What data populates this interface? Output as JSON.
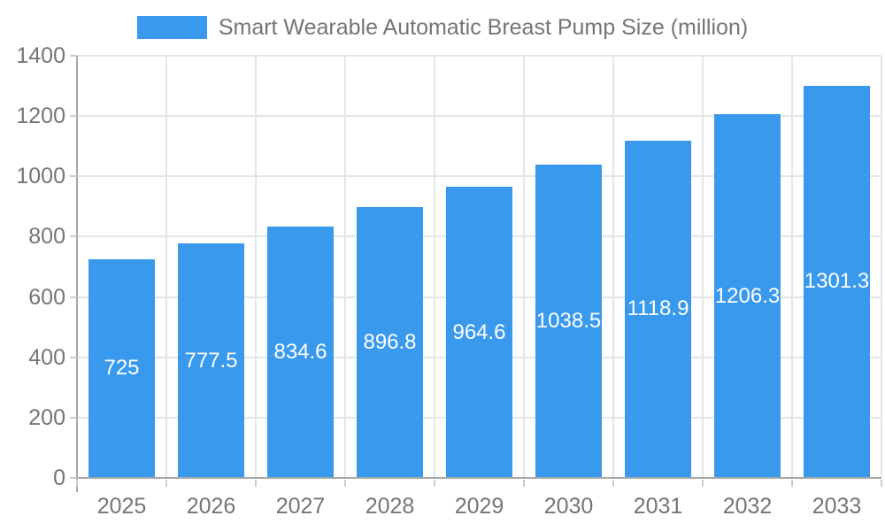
{
  "chart_data": {
    "type": "bar",
    "title": "Smart Wearable Automatic Breast Pump Size (million)",
    "legend": {
      "label": "Smart Wearable Automatic Breast Pump Size (million)",
      "position": "top-center"
    },
    "categories": [
      "2025",
      "2026",
      "2027",
      "2028",
      "2029",
      "2030",
      "2031",
      "2032",
      "2033"
    ],
    "series": [
      {
        "name": "Smart Wearable Automatic Breast Pump Size (million)",
        "values": [
          725,
          777.5,
          834.6,
          896.8,
          964.6,
          1038.5,
          1118.9,
          1206.3,
          1301.3
        ]
      }
    ],
    "value_labels": [
      "725",
      "777.5",
      "834.6",
      "896.8",
      "964.6",
      "1038.5",
      "1118.9",
      "1206.3",
      "1301.3"
    ],
    "xlabel": "",
    "ylabel": "",
    "ylim": [
      0,
      1400
    ],
    "yticks": [
      0,
      200,
      400,
      600,
      800,
      1000,
      1200,
      1400
    ],
    "grid": true,
    "colors": {
      "bar": "#3999EC",
      "value_label_text": "#FFFFFF",
      "tick_text": "#757575",
      "legend_text": "#757575",
      "grid_line": "#E6E6E6",
      "axis_line": "#A6A6A6",
      "tick_mark": "#CCCCCC",
      "background": "#FFFFFF"
    }
  }
}
